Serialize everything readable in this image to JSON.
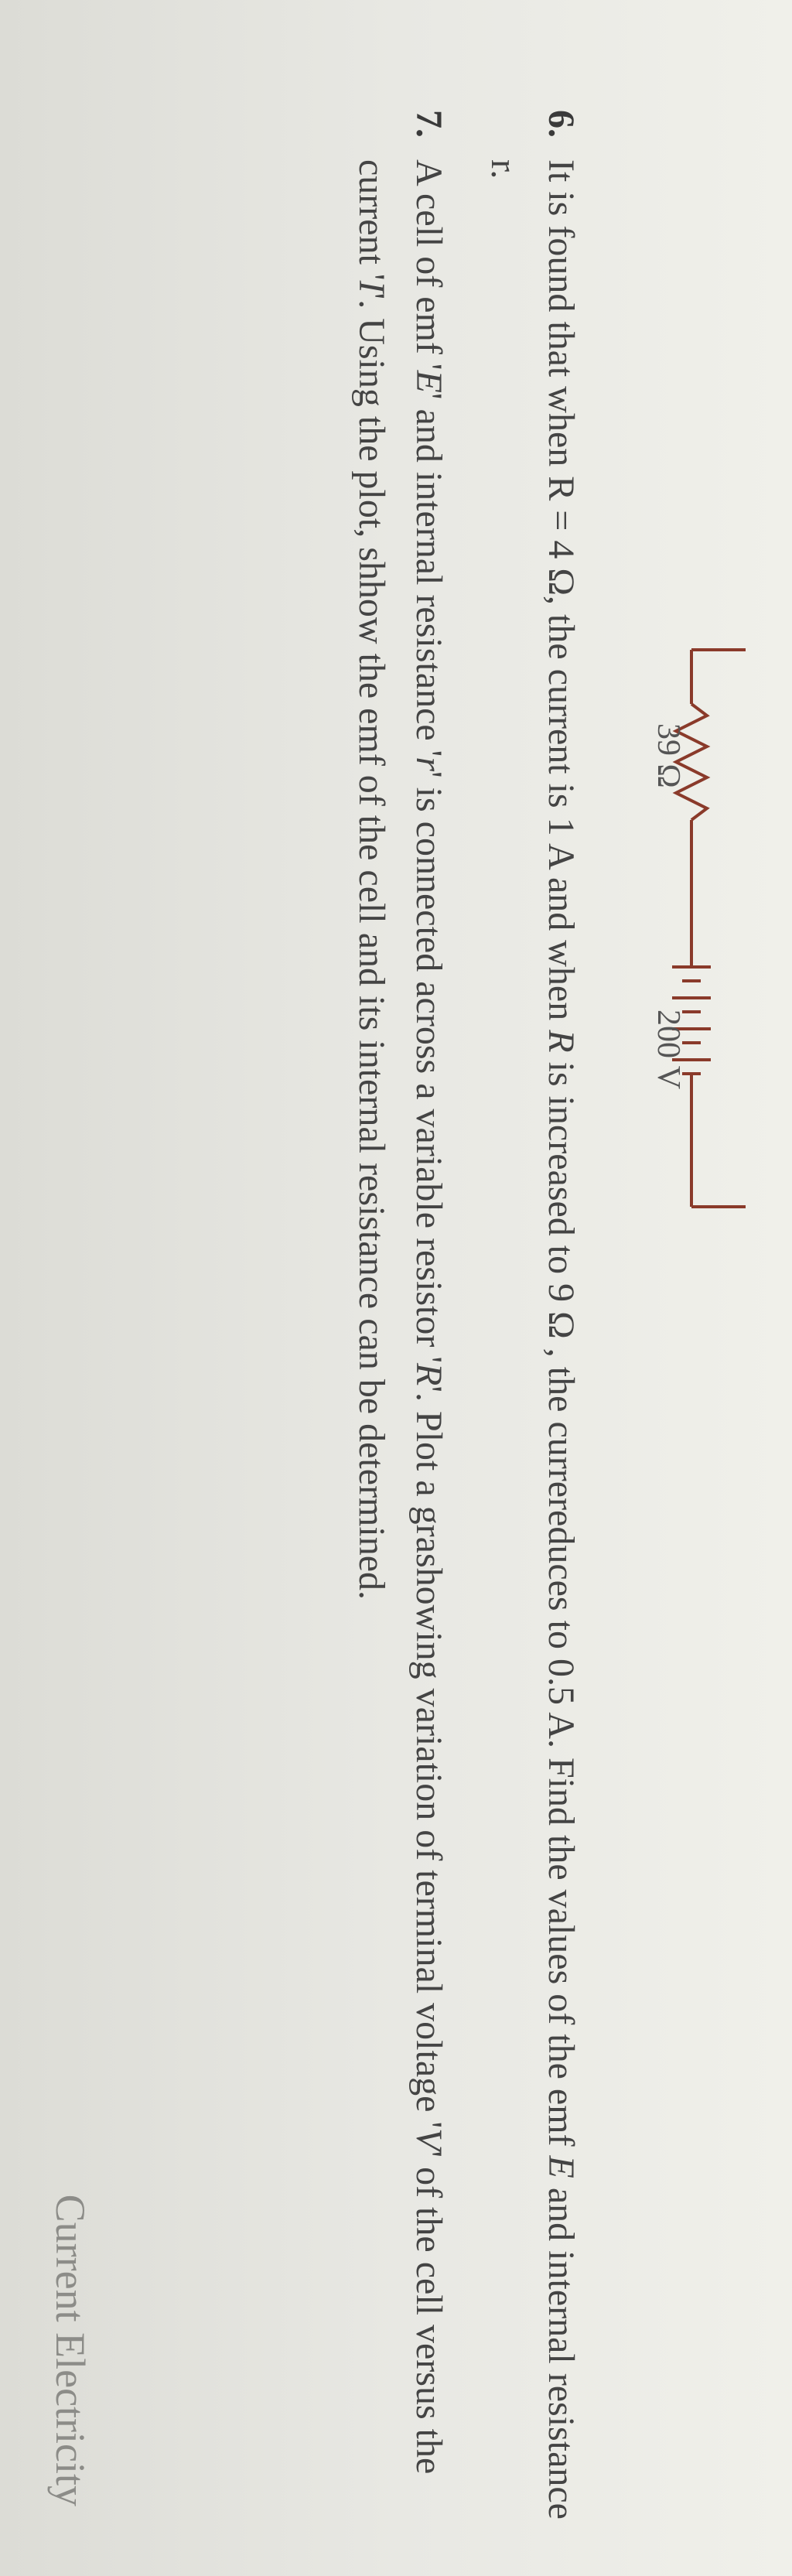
{
  "circuit": {
    "resistor_label": "39 Ω",
    "voltage_label": "200 V",
    "wire_color": "#8a3a2a",
    "label_color": "#555555",
    "label_fontsize": 42
  },
  "problems": [
    {
      "num": "6.",
      "text_parts": [
        {
          "t": "It is found that when R = 4 Ω, the current is 1 A and when "
        },
        {
          "t": "R",
          "i": true
        },
        {
          "t": " is increased to 9 Ω , the curre"
        },
        {
          "t": "reduces to 0.5 A. Find the values of the emf "
        },
        {
          "t": "E",
          "i": true
        },
        {
          "t": " and internal resistance r."
        }
      ]
    },
    {
      "num": "7.",
      "text_parts": [
        {
          "t": "A cell of emf '"
        },
        {
          "t": "E",
          "i": true
        },
        {
          "t": "' and internal resistance '"
        },
        {
          "t": "r",
          "i": true
        },
        {
          "t": "' is connected across a variable resistor '"
        },
        {
          "t": "R",
          "i": true
        },
        {
          "t": "'. Plot a gra"
        },
        {
          "t": "showing variation of terminal voltage '"
        },
        {
          "t": "V",
          "i": true
        },
        {
          "t": "' of the cell versus the current '"
        },
        {
          "t": "I",
          "i": true
        },
        {
          "t": "'. Using the plot, sh"
        },
        {
          "t": "how the emf of the cell and its internal resistance can be determined."
        }
      ]
    }
  ],
  "footer": "Current Electricity",
  "typography": {
    "body_fontsize": 48,
    "body_color": "#444444",
    "footer_fontsize": 54,
    "footer_color": "#8c8c88",
    "font_family": "Times New Roman"
  }
}
